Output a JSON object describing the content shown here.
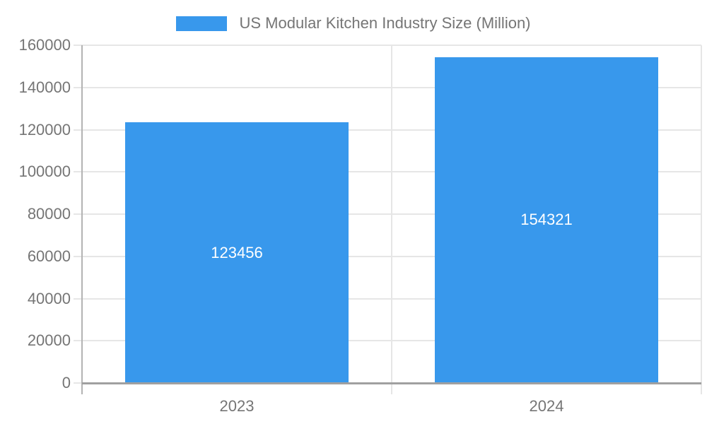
{
  "chart_data": {
    "type": "bar",
    "title": "US Modular Kitchen Industry Size (Million)",
    "categories": [
      "2023",
      "2024"
    ],
    "series": [
      {
        "name": "US Modular Kitchen Industry Size (Million)",
        "values": [
          123456,
          154321
        ]
      }
    ],
    "bar_value_labels": [
      "123456",
      "154321"
    ],
    "xlabel": "",
    "ylabel": "",
    "ylim": [
      0,
      160000
    ],
    "ytick_step": 20000,
    "ytick_labels": [
      "0",
      "20000",
      "40000",
      "60000",
      "80000",
      "100000",
      "120000",
      "140000",
      "160000"
    ],
    "grid": true,
    "legend_position": "top"
  },
  "legend": {
    "label": "US Modular Kitchen Industry Size (Million)"
  },
  "colors": {
    "bar": "#3898ec",
    "grid": "#e6e6e6",
    "axis_line": "#b3b3b3",
    "baseline": "#a0a0a0",
    "tick_text": "#757575",
    "bar_label_text": "#ffffff",
    "background": "#ffffff"
  }
}
